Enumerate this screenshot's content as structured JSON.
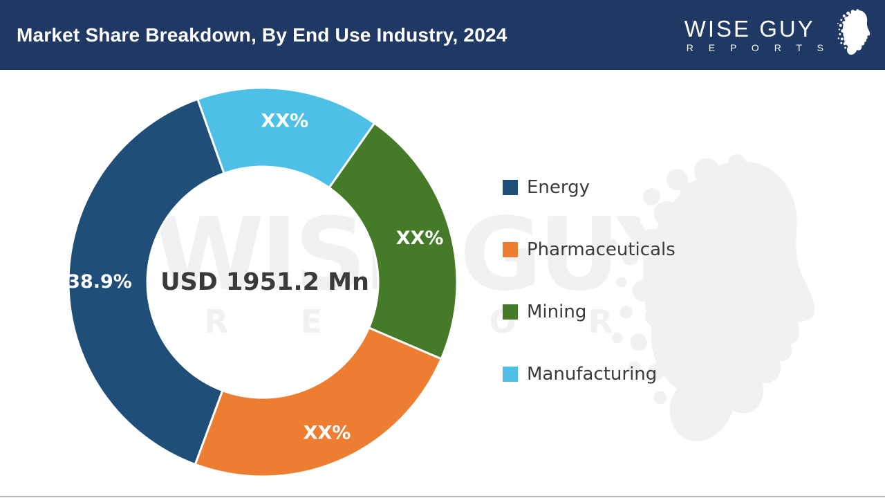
{
  "header": {
    "title": "Market Share Breakdown, By End Use Industry, 2024",
    "logo": {
      "line1": "WISE GUY",
      "line2": "R E P O R T S"
    }
  },
  "watermark": {
    "line1": "WISE GUY",
    "line2": "R E P O R T S"
  },
  "chart_data": {
    "type": "pie",
    "subtype": "donut",
    "title": "Market Share Breakdown, By End Use Industry, 2024",
    "center_label": "USD 1951.2 Mn",
    "start_angle_deg": -19.6,
    "direction": "clockwise",
    "segments_clockwise": [
      {
        "name": "Manufacturing",
        "label": "XX%",
        "share_pct": 15.2,
        "estimated": true,
        "color": "#4EC0E8"
      },
      {
        "name": "Mining",
        "label": "XX%",
        "share_pct": 21.7,
        "estimated": true,
        "color": "#457A28"
      },
      {
        "name": "Pharmaceuticals",
        "label": "XX%",
        "share_pct": 24.2,
        "estimated": true,
        "color": "#ED7D31"
      },
      {
        "name": "Energy",
        "label": "38.9%",
        "share_pct": 38.9,
        "estimated": false,
        "color": "#1F4E79"
      }
    ],
    "legend": [
      {
        "name": "Energy",
        "color": "#1F4E79"
      },
      {
        "name": "Pharmaceuticals",
        "color": "#ED7D31"
      },
      {
        "name": "Mining",
        "color": "#457A28"
      },
      {
        "name": "Manufacturing",
        "color": "#4EC0E8"
      }
    ],
    "legend_position": "right"
  },
  "theme": {
    "header_bg": "#1F3864",
    "text_color": "#3A3A3A",
    "watermark_color": "#F1F1F4"
  }
}
